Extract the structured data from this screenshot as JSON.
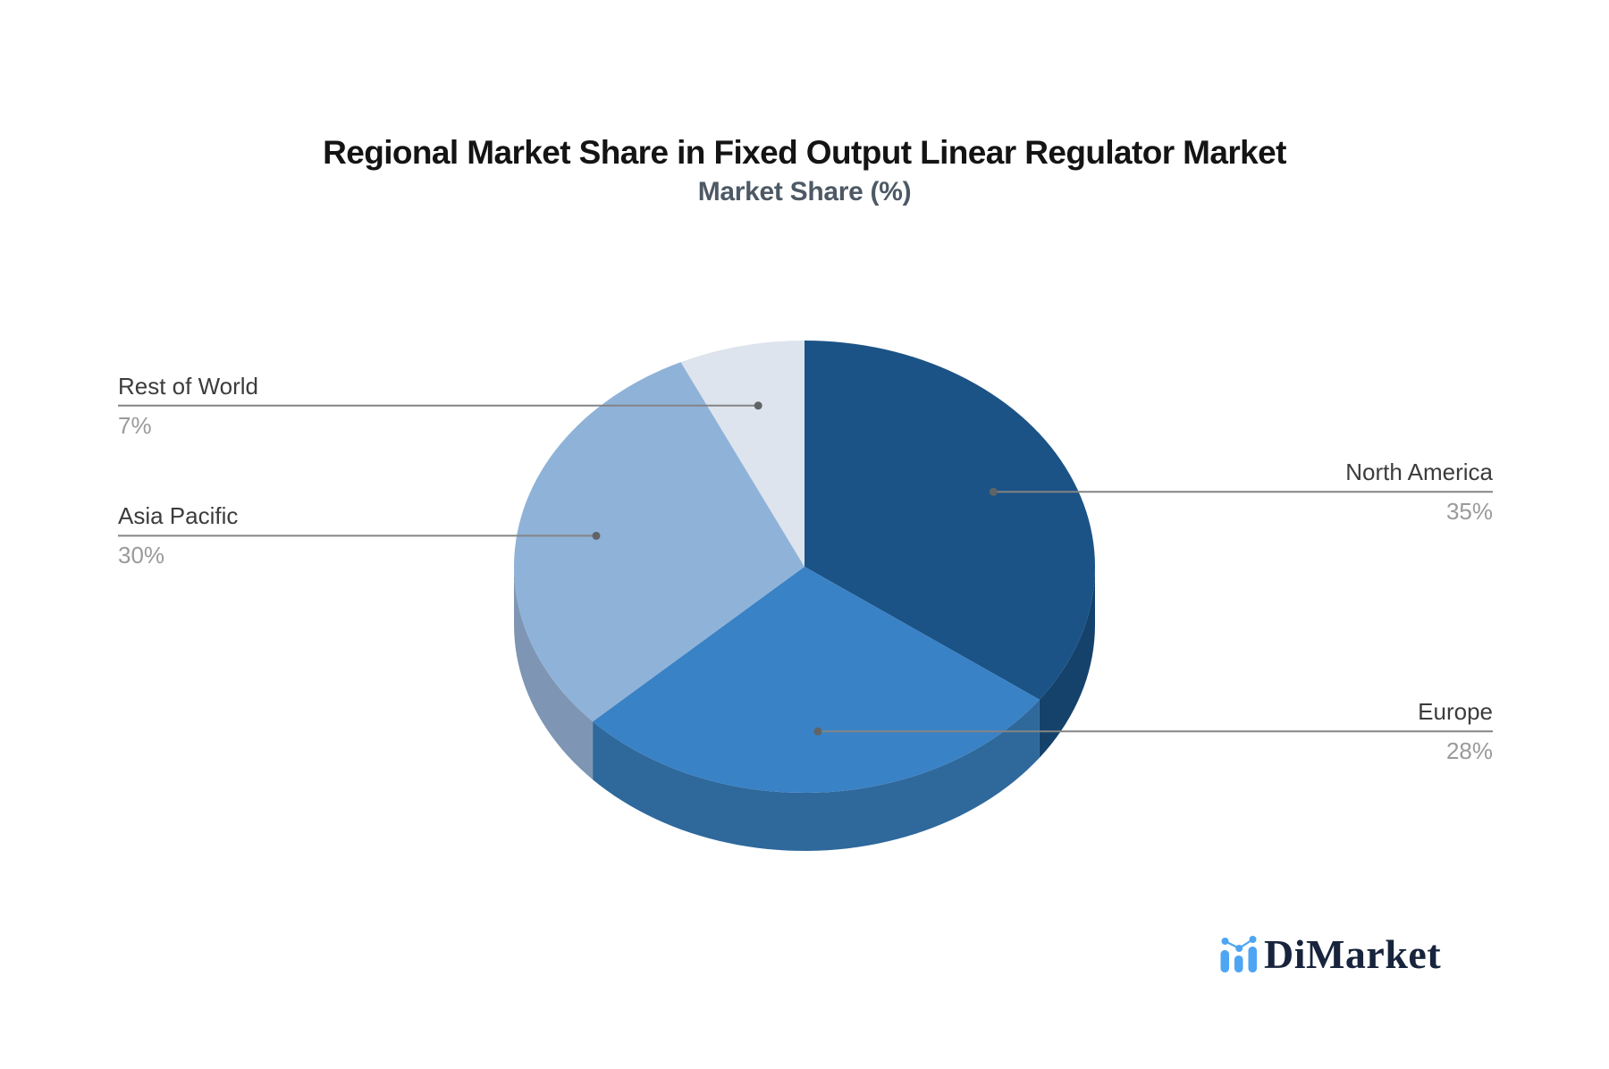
{
  "chart_data": {
    "type": "pie",
    "variant": "3d",
    "title": "Regional Market Share in Fixed Output Linear Regulator Market",
    "subtitle": "Market Share (%)",
    "unit": "%",
    "direction": "clockwise",
    "start_angle": "12-o-clock",
    "legend_position": "callout-labels",
    "slices": [
      {
        "label": "North America",
        "value": 35,
        "display_value": "35%",
        "color": "#1b5387",
        "side_color": "#14426b",
        "callout_side": "right"
      },
      {
        "label": "Europe",
        "value": 28,
        "display_value": "28%",
        "color": "#3a82c6",
        "side_color": "#2f699c",
        "callout_side": "right"
      },
      {
        "label": "Asia Pacific",
        "value": 30,
        "display_value": "30%",
        "color": "#8fb2d8",
        "side_color": "#7e96b4",
        "callout_side": "left"
      },
      {
        "label": "Rest of World",
        "value": 7,
        "display_value": "7%",
        "color": "#dde4ee",
        "side_color": "#c9d3e0",
        "callout_side": "left"
      }
    ]
  },
  "style": {
    "background_color": "#ffffff",
    "title_color": "#141414",
    "subtitle_color": "#4d5965",
    "callout_line_color": "#848484",
    "callout_dot_color": "#606467",
    "callout_label_color": "#3c3c3c",
    "callout_value_color": "#9a9a9a"
  },
  "branding": {
    "logo_text": "DiMarket",
    "logo_icon": "bar-line-chart-icon",
    "logo_icon_color": "#4da5f3",
    "logo_text_color": "#17243c"
  }
}
